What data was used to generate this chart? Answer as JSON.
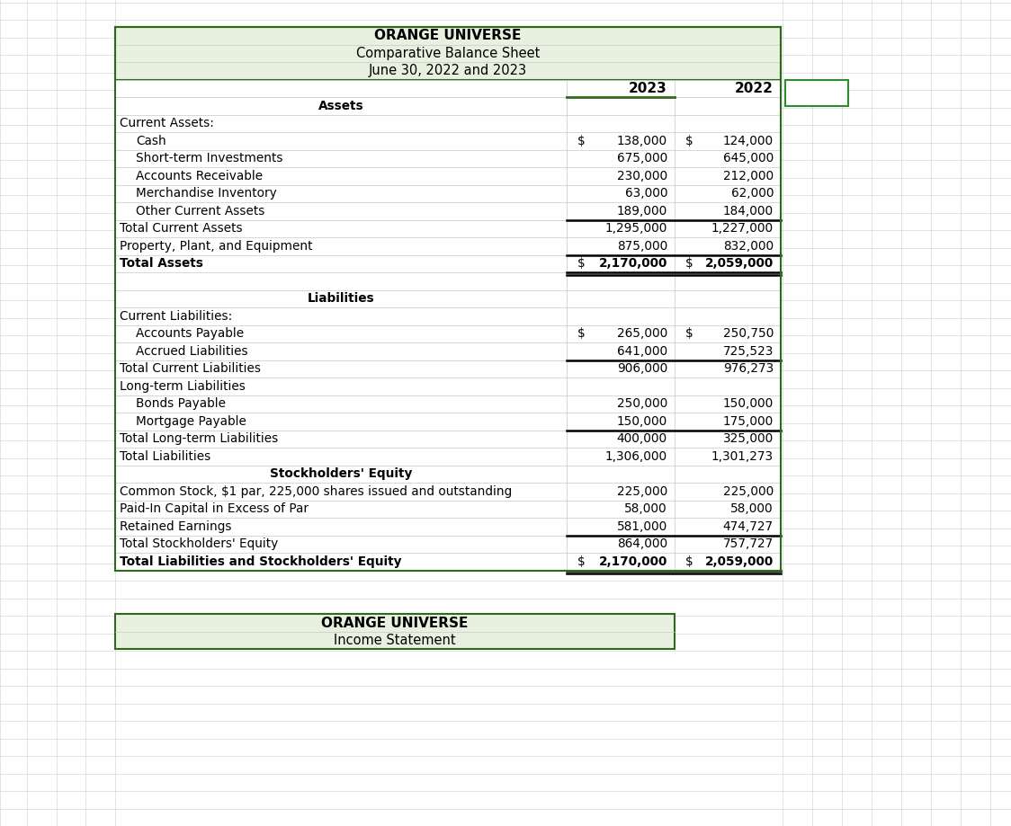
{
  "title1": "ORANGE UNIVERSE",
  "title2": "Comparative Balance Sheet",
  "title3": "June 30, 2022 and 2023",
  "header_bg": "#e8f0e0",
  "border_col": "#2d6b1a",
  "table_bg": "#ffffff",
  "bg_color": "#ffffff",
  "spreadsheet_line_color": "#d0d0d0",
  "rows": [
    {
      "label": "Assets",
      "val2023": "",
      "val2022": "",
      "indent": 1,
      "bold": true,
      "center": true,
      "dollar2023": false,
      "dollar2022": false,
      "bottom_border": false,
      "double_bottom": false
    },
    {
      "label": "Current Assets:",
      "val2023": "",
      "val2022": "",
      "indent": 0,
      "bold": false,
      "center": false,
      "dollar2023": false,
      "dollar2022": false,
      "bottom_border": false,
      "double_bottom": false
    },
    {
      "label": "Cash",
      "val2023": "138,000",
      "val2022": "124,000",
      "indent": 1,
      "bold": false,
      "center": false,
      "dollar2023": true,
      "dollar2022": true,
      "bottom_border": false,
      "double_bottom": false
    },
    {
      "label": "Short-term Investments",
      "val2023": "675,000",
      "val2022": "645,000",
      "indent": 1,
      "bold": false,
      "center": false,
      "dollar2023": false,
      "dollar2022": false,
      "bottom_border": false,
      "double_bottom": false
    },
    {
      "label": "Accounts Receivable",
      "val2023": "230,000",
      "val2022": "212,000",
      "indent": 1,
      "bold": false,
      "center": false,
      "dollar2023": false,
      "dollar2022": false,
      "bottom_border": false,
      "double_bottom": false
    },
    {
      "label": "Merchandise Inventory",
      "val2023": "63,000",
      "val2022": "62,000",
      "indent": 1,
      "bold": false,
      "center": false,
      "dollar2023": false,
      "dollar2022": false,
      "bottom_border": false,
      "double_bottom": false
    },
    {
      "label": "Other Current Assets",
      "val2023": "189,000",
      "val2022": "184,000",
      "indent": 1,
      "bold": false,
      "center": false,
      "dollar2023": false,
      "dollar2022": false,
      "bottom_border": true,
      "double_bottom": false
    },
    {
      "label": "Total Current Assets",
      "val2023": "1,295,000",
      "val2022": "1,227,000",
      "indent": 0,
      "bold": false,
      "center": false,
      "dollar2023": false,
      "dollar2022": false,
      "bottom_border": false,
      "double_bottom": false
    },
    {
      "label": "Property, Plant, and Equipment",
      "val2023": "875,000",
      "val2022": "832,000",
      "indent": 0,
      "bold": false,
      "center": false,
      "dollar2023": false,
      "dollar2022": false,
      "bottom_border": true,
      "double_bottom": false
    },
    {
      "label": "Total Assets",
      "val2023": "2,170,000",
      "val2022": "2,059,000",
      "indent": 0,
      "bold": true,
      "center": false,
      "dollar2023": true,
      "dollar2022": true,
      "bottom_border": false,
      "double_bottom": true
    },
    {
      "label": "",
      "val2023": "",
      "val2022": "",
      "indent": 0,
      "bold": false,
      "center": false,
      "dollar2023": false,
      "dollar2022": false,
      "bottom_border": false,
      "double_bottom": false
    },
    {
      "label": "Liabilities",
      "val2023": "",
      "val2022": "",
      "indent": 1,
      "bold": true,
      "center": true,
      "dollar2023": false,
      "dollar2022": false,
      "bottom_border": false,
      "double_bottom": false
    },
    {
      "label": "Current Liabilities:",
      "val2023": "",
      "val2022": "",
      "indent": 0,
      "bold": false,
      "center": false,
      "dollar2023": false,
      "dollar2022": false,
      "bottom_border": false,
      "double_bottom": false
    },
    {
      "label": "Accounts Payable",
      "val2023": "265,000",
      "val2022": "250,750",
      "indent": 1,
      "bold": false,
      "center": false,
      "dollar2023": true,
      "dollar2022": true,
      "bottom_border": false,
      "double_bottom": false
    },
    {
      "label": "Accrued Liabilities",
      "val2023": "641,000",
      "val2022": "725,523",
      "indent": 1,
      "bold": false,
      "center": false,
      "dollar2023": false,
      "dollar2022": false,
      "bottom_border": true,
      "double_bottom": false
    },
    {
      "label": "Total Current Liabilities",
      "val2023": "906,000",
      "val2022": "976,273",
      "indent": 0,
      "bold": false,
      "center": false,
      "dollar2023": false,
      "dollar2022": false,
      "bottom_border": false,
      "double_bottom": false
    },
    {
      "label": "Long-term Liabilities",
      "val2023": "",
      "val2022": "",
      "indent": 0,
      "bold": false,
      "center": false,
      "dollar2023": false,
      "dollar2022": false,
      "bottom_border": false,
      "double_bottom": false
    },
    {
      "label": "Bonds Payable",
      "val2023": "250,000",
      "val2022": "150,000",
      "indent": 1,
      "bold": false,
      "center": false,
      "dollar2023": false,
      "dollar2022": false,
      "bottom_border": false,
      "double_bottom": false
    },
    {
      "label": "Mortgage Payable",
      "val2023": "150,000",
      "val2022": "175,000",
      "indent": 1,
      "bold": false,
      "center": false,
      "dollar2023": false,
      "dollar2022": false,
      "bottom_border": true,
      "double_bottom": false
    },
    {
      "label": "Total Long-term Liabilities",
      "val2023": "400,000",
      "val2022": "325,000",
      "indent": 0,
      "bold": false,
      "center": false,
      "dollar2023": false,
      "dollar2022": false,
      "bottom_border": false,
      "double_bottom": false
    },
    {
      "label": "Total Liabilities",
      "val2023": "1,306,000",
      "val2022": "1,301,273",
      "indent": 0,
      "bold": false,
      "center": false,
      "dollar2023": false,
      "dollar2022": false,
      "bottom_border": false,
      "double_bottom": false
    },
    {
      "label": "Stockholders' Equity",
      "val2023": "",
      "val2022": "",
      "indent": 1,
      "bold": true,
      "center": true,
      "dollar2023": false,
      "dollar2022": false,
      "bottom_border": false,
      "double_bottom": false
    },
    {
      "label": "Common Stock, $1 par, 225,000 shares issued and outstanding",
      "val2023": "225,000",
      "val2022": "225,000",
      "indent": 0,
      "bold": false,
      "center": false,
      "dollar2023": false,
      "dollar2022": false,
      "bottom_border": false,
      "double_bottom": false
    },
    {
      "label": "Paid-In Capital in Excess of Par",
      "val2023": "58,000",
      "val2022": "58,000",
      "indent": 0,
      "bold": false,
      "center": false,
      "dollar2023": false,
      "dollar2022": false,
      "bottom_border": false,
      "double_bottom": false
    },
    {
      "label": "Retained Earnings",
      "val2023": "581,000",
      "val2022": "474,727",
      "indent": 0,
      "bold": false,
      "center": false,
      "dollar2023": false,
      "dollar2022": false,
      "bottom_border": true,
      "double_bottom": false
    },
    {
      "label": "Total Stockholders' Equity",
      "val2023": "864,000",
      "val2022": "757,727",
      "indent": 0,
      "bold": false,
      "center": false,
      "dollar2023": false,
      "dollar2022": false,
      "bottom_border": false,
      "double_bottom": false
    },
    {
      "label": "Total Liabilities and Stockholders' Equity",
      "val2023": "2,170,000",
      "val2022": "2,059,000",
      "indent": 0,
      "bold": true,
      "center": false,
      "dollar2023": true,
      "dollar2022": true,
      "bottom_border": false,
      "double_bottom": true
    }
  ],
  "footer_title1": "ORANGE UNIVERSE",
  "footer_title2": "Income Statement"
}
